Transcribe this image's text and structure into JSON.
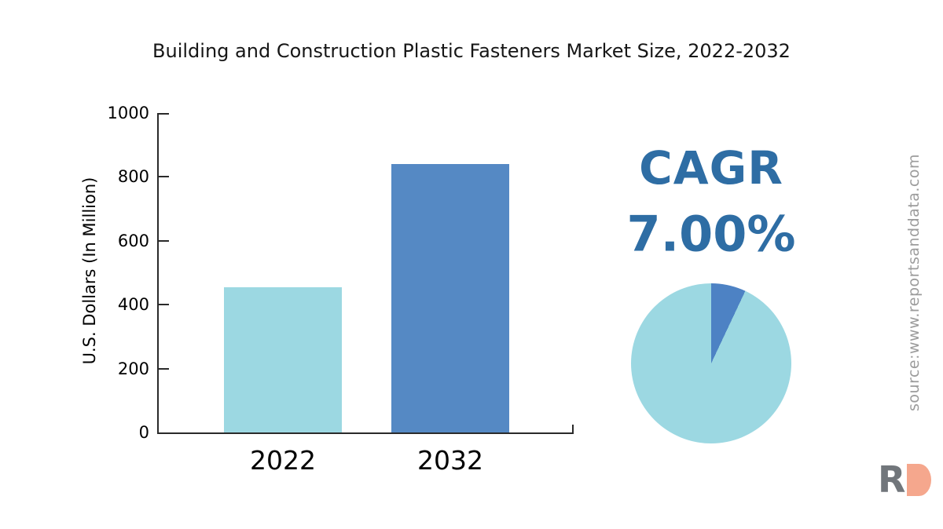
{
  "chart_data": {
    "type": "bar",
    "title": "Building and Construction Plastic Fasteners Market Size, 2022-2032",
    "categories": [
      "2022",
      "2032"
    ],
    "values": [
      455,
      840
    ],
    "xlabel": "",
    "ylabel": "U.S. Dollars (In Million)",
    "ylim": [
      0,
      1000
    ],
    "yticks": [
      0,
      200,
      400,
      600,
      800,
      1000
    ],
    "ytick_labels_top_to_bottom": [
      "1000",
      "800",
      "600",
      "400",
      "200",
      "0"
    ],
    "grid": false,
    "legend": "none",
    "bar_colors": [
      "#9cd8e2",
      "#5589c4"
    ]
  },
  "cagr": {
    "label": "CAGR",
    "value": "7.00%",
    "percent": 7,
    "color": "#2e6da4"
  },
  "pie": {
    "type": "pie",
    "slice_percent": 7,
    "remainder_percent": 93,
    "slice_color": "#4d82c4",
    "remainder_color": "#9cd8e2",
    "start_angle_deg": 0
  },
  "source_text": "source:www.reportsanddata.com",
  "logo": {
    "letter": "R",
    "letter_color": "#71767b",
    "d_shape_color": "#f5a78d"
  }
}
